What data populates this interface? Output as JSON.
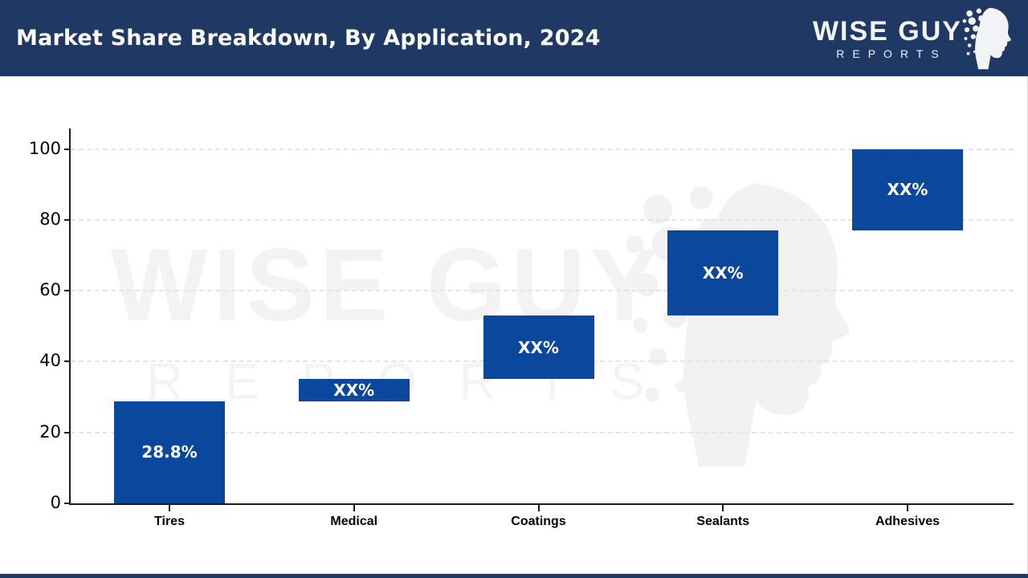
{
  "header": {
    "title": "Market Share Breakdown, By Application, 2024",
    "bg_color": "#1F3864",
    "text_color": "#FFFFFF",
    "logo": {
      "line1": "WISE GUY",
      "line2": "REPORTS"
    }
  },
  "watermark": {
    "line1": "WISE GUY",
    "line2": "REPORTS"
  },
  "chart_data": {
    "type": "bar",
    "subtype": "waterfall",
    "title": "Market Share Breakdown, By Application, 2024",
    "categories": [
      "Tires",
      "Medical",
      "Coatings",
      "Sealants",
      "Adhesives"
    ],
    "segments": [
      {
        "category": "Tires",
        "start": 0,
        "end": 28.8,
        "label": "28.8%"
      },
      {
        "category": "Medical",
        "start": 28.8,
        "end": 35,
        "label": "XX%"
      },
      {
        "category": "Coatings",
        "start": 35,
        "end": 53,
        "label": "XX%"
      },
      {
        "category": "Sealants",
        "start": 53,
        "end": 77,
        "label": "XX%"
      },
      {
        "category": "Adhesives",
        "start": 77,
        "end": 100,
        "label": "XX%"
      }
    ],
    "y_ticks": [
      0,
      20,
      40,
      60,
      80,
      100
    ],
    "ylim": [
      0,
      105
    ],
    "grid": true,
    "grid_style": "dashed",
    "legend": "none",
    "bar_color": "#0B479D",
    "bar_label_color": "#FFFFFF",
    "axis_color": "#1A1A1A"
  }
}
